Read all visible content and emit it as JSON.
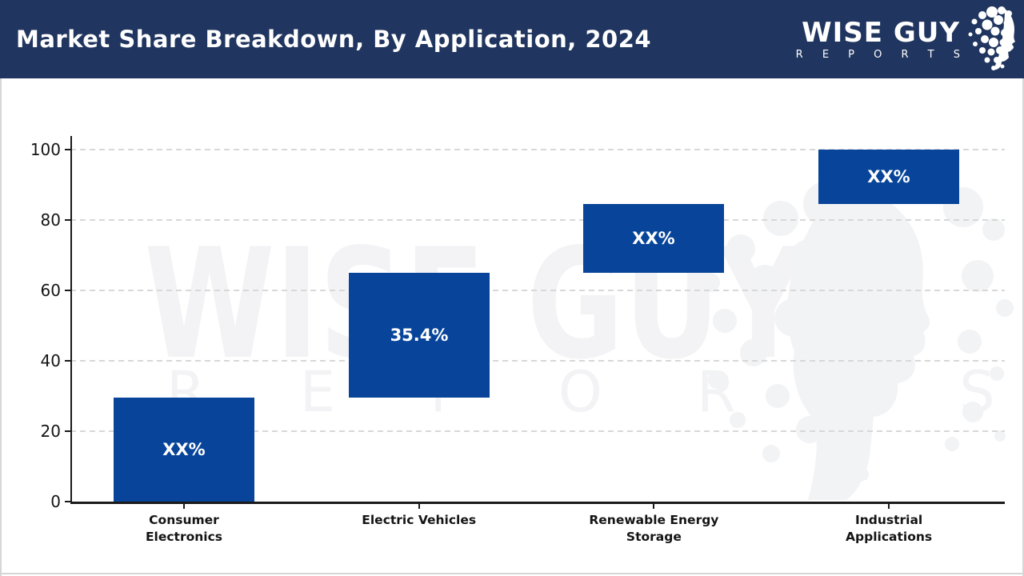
{
  "header": {
    "title": "Market Share Breakdown, By Application, 2024",
    "background": "#20355f",
    "logo": {
      "line1": "WISE GUY",
      "line2": "R E P O R T S"
    }
  },
  "watermark": {
    "line1": "WISE GUY",
    "line2": "R E P O R T S"
  },
  "chart_data": {
    "type": "bar",
    "subtype": "waterfall",
    "title": "Market Share Breakdown, By Application, 2024",
    "categories": [
      "Consumer Electronics",
      "Electric Vehicles",
      "Renewable Energy Storage",
      "Industrial Applications"
    ],
    "bars": [
      {
        "category": "Consumer Electronics",
        "label_lines": [
          "Consumer",
          "Electronics"
        ],
        "start": 0,
        "end": 29.6,
        "value_label": "XX%"
      },
      {
        "category": "Electric Vehicles",
        "label_lines": [
          "Electric Vehicles"
        ],
        "start": 29.6,
        "end": 65.0,
        "value_label": "35.4%"
      },
      {
        "category": "Renewable Energy Storage",
        "label_lines": [
          "Renewable Energy",
          "Storage"
        ],
        "start": 65.0,
        "end": 84.6,
        "value_label": "XX%"
      },
      {
        "category": "Industrial Applications",
        "label_lines": [
          "Industrial",
          "Applications"
        ],
        "start": 84.6,
        "end": 100.0,
        "value_label": "XX%"
      }
    ],
    "yticks": [
      0,
      20,
      40,
      60,
      80,
      100
    ],
    "ylim": [
      0,
      103
    ],
    "xlabel": "",
    "ylabel": "",
    "legend": "none",
    "grid": "horizontal-dashed",
    "bar_color": "#08459a",
    "bar_label_color": "#ffffff",
    "axis_color": "#1a1a1a",
    "grid_color": "#d8d8d8"
  }
}
